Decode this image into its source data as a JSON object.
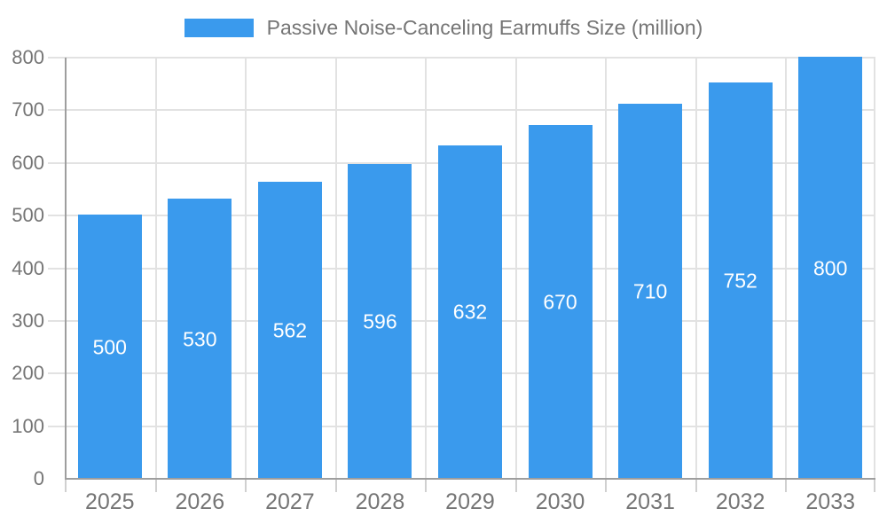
{
  "chart_data": {
    "type": "bar",
    "title": "Passive Noise-Canceling Earmuffs Size (million)",
    "categories": [
      "2025",
      "2026",
      "2027",
      "2028",
      "2029",
      "2030",
      "2031",
      "2032",
      "2033"
    ],
    "values": [
      500,
      530,
      562,
      596,
      632,
      670,
      710,
      752,
      800
    ],
    "xlabel": "",
    "ylabel": "",
    "ylim": [
      0,
      800
    ],
    "yticks": [
      0,
      100,
      200,
      300,
      400,
      500,
      600,
      700,
      800
    ],
    "grid": true,
    "legend_position": "top",
    "value_labels": "centered-inside-bars"
  },
  "colors": {
    "bar": "#3A9AED",
    "grid": "#e2e2e2",
    "axis": "#9e9e9e",
    "text": "#757575",
    "value_label": "#ffffff",
    "background": "#ffffff"
  }
}
